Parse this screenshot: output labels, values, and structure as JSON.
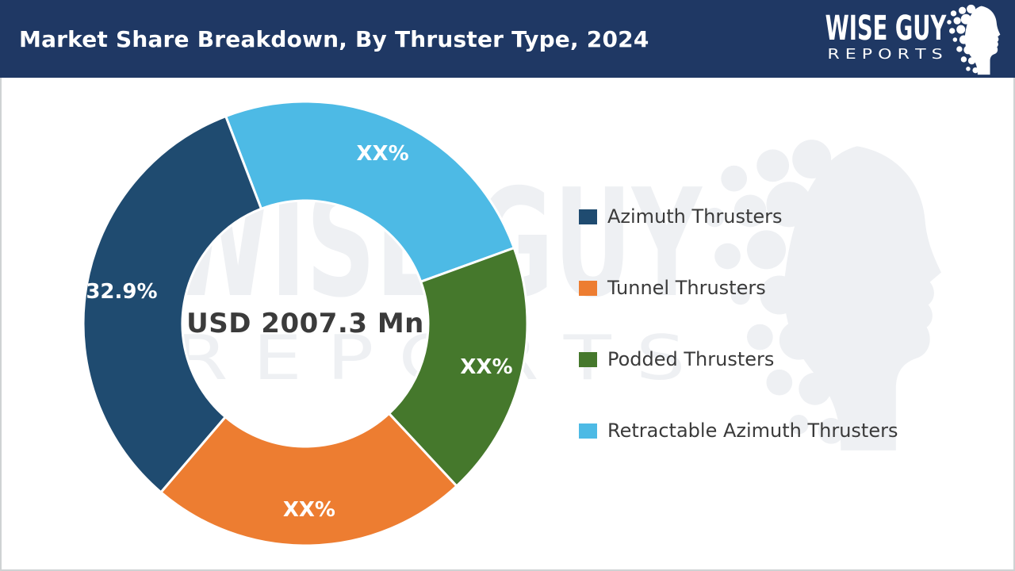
{
  "header": {
    "title": "Market Share Breakdown, By Thruster Type, 2024",
    "background_color": "#1f3864"
  },
  "brand": {
    "line1": "WISE GUY",
    "line2": "R E P O R T S",
    "logo_color": "#ffffff",
    "watermark_color": "#eef0f3"
  },
  "chart_data": {
    "type": "pie",
    "subtype": "donut",
    "title": "Market Share Breakdown, By Thruster Type, 2024",
    "center_label": "USD 2007.3 Mn",
    "start_angle_deg": -21,
    "legend_position": "right",
    "segments": [
      {
        "label": "Retractable Azimuth Thrusters",
        "value_pct": 25.3,
        "display_label": "XX%",
        "color": "#4dbae5"
      },
      {
        "label": "Podded Thrusters",
        "value_pct": 18.6,
        "display_label": "XX%",
        "color": "#45782c"
      },
      {
        "label": "Tunnel Thrusters",
        "value_pct": 23.2,
        "display_label": "XX%",
        "color": "#ed7d31"
      },
      {
        "label": "Azimuth Thrusters",
        "value_pct": 32.9,
        "display_label": "32.9%",
        "color": "#1f4b70"
      }
    ],
    "legend": [
      {
        "label": "Azimuth Thrusters",
        "color": "#1f4b70"
      },
      {
        "label": "Tunnel Thrusters",
        "color": "#ed7d31"
      },
      {
        "label": "Podded Thrusters",
        "color": "#45782c"
      },
      {
        "label": "Retractable Azimuth Thrusters",
        "color": "#4dbae5"
      }
    ]
  }
}
